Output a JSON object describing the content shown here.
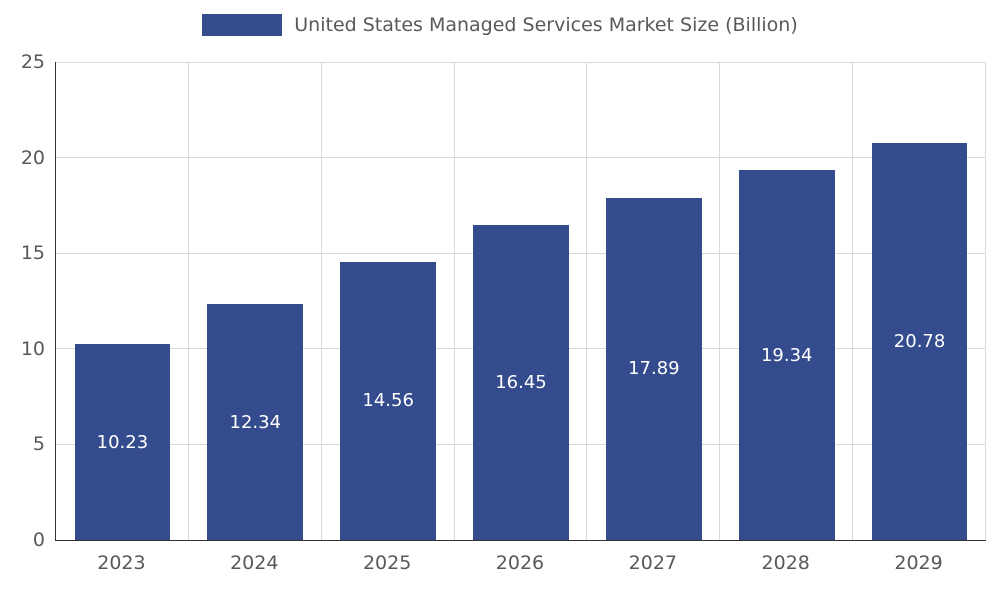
{
  "legend": {
    "label": "United States Managed Services Market Size (Billion)",
    "swatch_color": "#344b8e"
  },
  "chart_data": {
    "type": "bar",
    "title": "United States Managed Services Market Size (Billion)",
    "categories": [
      "2023",
      "2024",
      "2025",
      "2026",
      "2027",
      "2028",
      "2029"
    ],
    "values": [
      10.23,
      12.34,
      14.56,
      16.45,
      17.89,
      19.34,
      20.78
    ],
    "value_labels": [
      "10.23",
      "12.34",
      "14.56",
      "16.45",
      "17.89",
      "19.34",
      "20.78"
    ],
    "xlabel": "",
    "ylabel": "",
    "ylim": [
      0,
      25
    ],
    "yticks": [
      0,
      5,
      10,
      15,
      20,
      25
    ],
    "grid": true,
    "legend_position": "top-center",
    "colors": {
      "bar": "#344b8e",
      "gridline": "#d9d9d9",
      "axis": "#333333",
      "tick_text": "#595959",
      "value_label_text": "#ffffff"
    }
  }
}
